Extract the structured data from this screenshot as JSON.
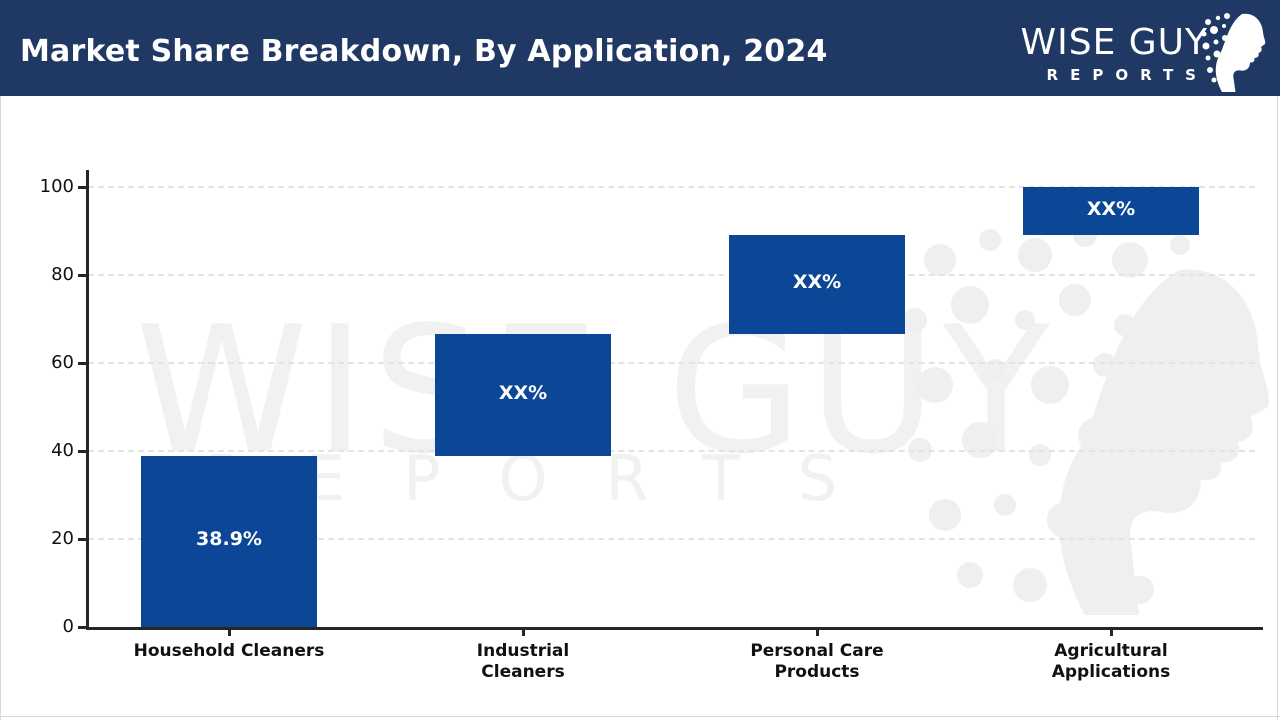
{
  "header": {
    "title": "Market Share Breakdown, By Application, 2024",
    "logo": {
      "line1": "WISE GUY",
      "line2": "REPORTS"
    }
  },
  "watermark": {
    "line1": "WISE GUY",
    "line2": "REPORTS"
  },
  "chart_data": {
    "type": "bar",
    "subtype": "floating_segment_waterfall",
    "title": "Market Share Breakdown, By Application, 2024",
    "categories": [
      "Household Cleaners",
      "Industrial Cleaners",
      "Personal Care Products",
      "Agricultural Applications"
    ],
    "bars": [
      {
        "category": "Household Cleaners",
        "tick_lines": [
          "Household Cleaners"
        ],
        "start": 0,
        "end": 38.9,
        "label": "38.9%"
      },
      {
        "category": "Industrial Cleaners",
        "tick_lines": [
          "Industrial",
          "Cleaners"
        ],
        "start": 38.9,
        "end": 66.7,
        "label": "XX%"
      },
      {
        "category": "Personal Care Products",
        "tick_lines": [
          "Personal Care",
          "Products"
        ],
        "start": 66.7,
        "end": 89.0,
        "label": "XX%"
      },
      {
        "category": "Agricultural Applications",
        "tick_lines": [
          "Agricultural",
          "Applications"
        ],
        "start": 89.0,
        "end": 100.0,
        "label": "XX%"
      }
    ],
    "ylim": [
      0,
      100
    ],
    "yticks": [
      0,
      20,
      40,
      60,
      80,
      100
    ],
    "grid": "horizontal-dashed",
    "legend": "none",
    "colors": {
      "header_bg": "#203864",
      "bar": "#0b4697",
      "bar_label": "#ffffff",
      "axis": "#262626",
      "grid": "#e3e3e3",
      "tick_label": "#111111",
      "watermark": "#f1f1f1"
    }
  }
}
